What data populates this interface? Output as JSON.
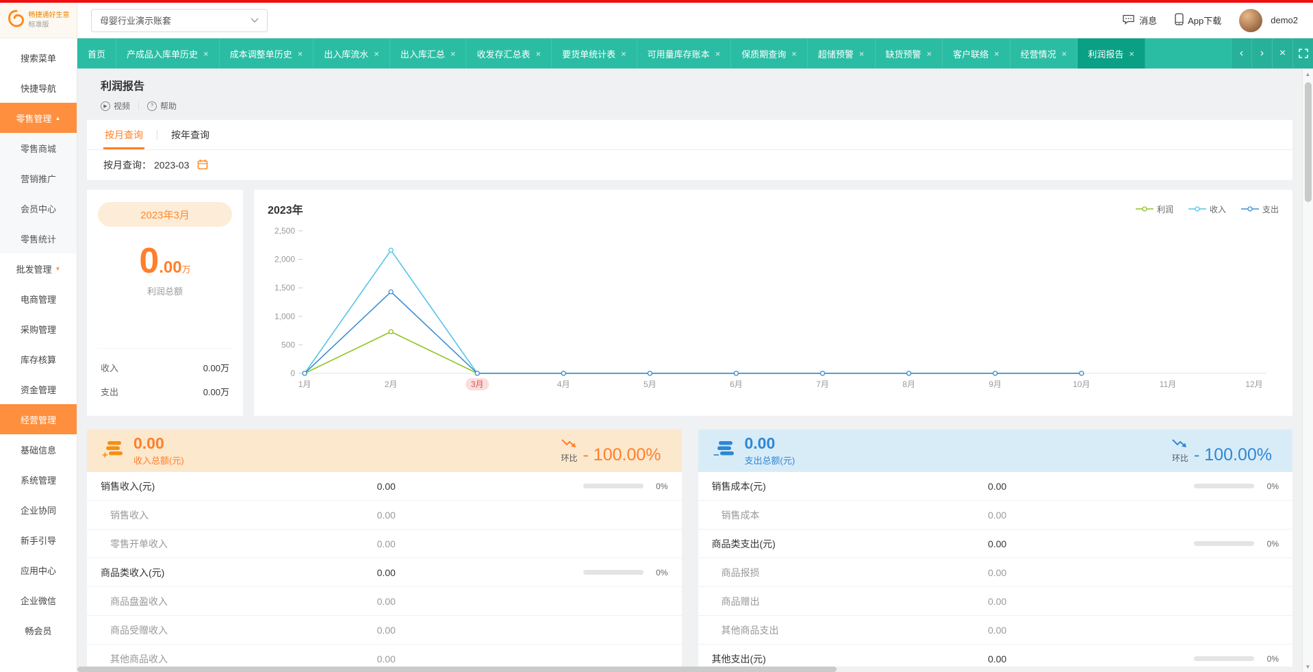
{
  "topbar": {
    "brand": {
      "name": "畅捷通好生意",
      "edition": "标准版"
    },
    "account_selector": {
      "value": "母婴行业演示账套"
    },
    "actions": {
      "messages": "消息",
      "app_download": "App下载",
      "username": "demo2"
    }
  },
  "tab_bar": {
    "tabs": [
      {
        "label": "首页",
        "closable": false,
        "active": false
      },
      {
        "label": "产成品入库单历史",
        "closable": true,
        "active": false
      },
      {
        "label": "成本调整单历史",
        "closable": true,
        "active": false
      },
      {
        "label": "出入库流水",
        "closable": true,
        "active": false
      },
      {
        "label": "出入库汇总",
        "closable": true,
        "active": false
      },
      {
        "label": "收发存汇总表",
        "closable": true,
        "active": false
      },
      {
        "label": "要货单统计表",
        "closable": true,
        "active": false
      },
      {
        "label": "可用量库存账本",
        "closable": true,
        "active": false
      },
      {
        "label": "保质期查询",
        "closable": true,
        "active": false
      },
      {
        "label": "超储预警",
        "closable": true,
        "active": false
      },
      {
        "label": "缺货预警",
        "closable": true,
        "active": false
      },
      {
        "label": "客户联络",
        "closable": true,
        "active": false
      },
      {
        "label": "经营情况",
        "closable": true,
        "active": false
      },
      {
        "label": "利润报告",
        "closable": true,
        "active": true
      }
    ]
  },
  "sidebar": {
    "items": [
      {
        "label": "搜索菜单",
        "type": "plain"
      },
      {
        "label": "快捷导航",
        "type": "plain"
      },
      {
        "label": "零售管理",
        "type": "group",
        "active": true,
        "caret": "up"
      },
      {
        "label": "零售商城",
        "type": "child"
      },
      {
        "label": "营销推广",
        "type": "child"
      },
      {
        "label": "会员中心",
        "type": "child"
      },
      {
        "label": "零售统计",
        "type": "child"
      },
      {
        "label": "批发管理",
        "type": "group",
        "caret": "down"
      },
      {
        "label": "电商管理",
        "type": "plain"
      },
      {
        "label": "采购管理",
        "type": "plain"
      },
      {
        "label": "库存核算",
        "type": "plain"
      },
      {
        "label": "资金管理",
        "type": "plain"
      },
      {
        "label": "经营管理",
        "type": "plain",
        "active": true
      },
      {
        "label": "基础信息",
        "type": "plain"
      },
      {
        "label": "系统管理",
        "type": "plain"
      },
      {
        "label": "企业协同",
        "type": "plain"
      },
      {
        "label": "新手引导",
        "type": "plain"
      },
      {
        "label": "应用中心",
        "type": "plain"
      },
      {
        "label": "企业微信",
        "type": "plain"
      },
      {
        "label": "畅会员",
        "type": "plain"
      }
    ]
  },
  "page": {
    "title": "利润报告",
    "links": {
      "video": "视频",
      "help": "帮助"
    },
    "query_tabs": [
      {
        "label": "按月查询",
        "active": true
      },
      {
        "label": "按年查询",
        "active": false
      }
    ],
    "filter": {
      "label": "按月查询：",
      "value": "2023-03"
    }
  },
  "summary": {
    "period": "2023年3月",
    "total_int": "0",
    "total_dec": ".00",
    "total_unit": "万",
    "total_label": "利润总额",
    "rows": [
      {
        "label": "收入",
        "value": "0.00万"
      },
      {
        "label": "支出",
        "value": "0.00万"
      }
    ]
  },
  "chart_data": {
    "type": "line",
    "title": "2023年",
    "x": [
      "1月",
      "2月",
      "3月",
      "4月",
      "5月",
      "6月",
      "7月",
      "8月",
      "9月",
      "10月",
      "11月",
      "12月"
    ],
    "series": [
      {
        "name": "利润",
        "color": "#8fc31f",
        "values": [
          0,
          730,
          0,
          0,
          0,
          0,
          0,
          0,
          0,
          0,
          null,
          null
        ]
      },
      {
        "name": "收入",
        "color": "#54c3e8",
        "values": [
          0,
          2160,
          0,
          0,
          0,
          0,
          0,
          0,
          0,
          0,
          null,
          null
        ]
      },
      {
        "name": "支出",
        "color": "#3f8fd2",
        "values": [
          0,
          1430,
          0,
          0,
          0,
          0,
          0,
          0,
          0,
          0,
          null,
          null
        ]
      }
    ],
    "ylim": [
      0,
      2500
    ],
    "yticks": [
      "0",
      "500",
      "1,000",
      "1,500",
      "2,000",
      "2,500"
    ],
    "highlight_x": "3月",
    "legend_position": "top-right",
    "grid": false
  },
  "income_card": {
    "total": "0.00",
    "total_label": "收入总额(元)",
    "trend_label": "环比",
    "trend_value": "- 100.00%",
    "rows": [
      {
        "label": "销售收入(元)",
        "value": "0.00",
        "level": "main",
        "pct": "0%"
      },
      {
        "label": "销售收入",
        "value": "0.00",
        "level": "sub"
      },
      {
        "label": "零售开单收入",
        "value": "0.00",
        "level": "sub"
      },
      {
        "label": "商品类收入(元)",
        "value": "0.00",
        "level": "main",
        "pct": "0%"
      },
      {
        "label": "商品盘盈收入",
        "value": "0.00",
        "level": "sub"
      },
      {
        "label": "商品受赠收入",
        "value": "0.00",
        "level": "sub"
      },
      {
        "label": "其他商品收入",
        "value": "0.00",
        "level": "sub"
      }
    ]
  },
  "expense_card": {
    "total": "0.00",
    "total_label": "支出总额(元)",
    "trend_label": "环比",
    "trend_value": "- 100.00%",
    "rows": [
      {
        "label": "销售成本(元)",
        "value": "0.00",
        "level": "main",
        "pct": "0%"
      },
      {
        "label": "销售成本",
        "value": "0.00",
        "level": "sub"
      },
      {
        "label": "商品类支出(元)",
        "value": "0.00",
        "level": "main",
        "pct": "0%"
      },
      {
        "label": "商品报损",
        "value": "0.00",
        "level": "sub"
      },
      {
        "label": "商品赠出",
        "value": "0.00",
        "level": "sub"
      },
      {
        "label": "其他商品支出",
        "value": "0.00",
        "level": "sub"
      },
      {
        "label": "其他支出(元)",
        "value": "0.00",
        "level": "main",
        "pct": "0%"
      }
    ]
  },
  "colors": {
    "primary_teal": "#2abda4",
    "accent_orange": "#ff7f2a",
    "expense_blue": "#2f87d3",
    "highlight_red": "#d9534f"
  }
}
